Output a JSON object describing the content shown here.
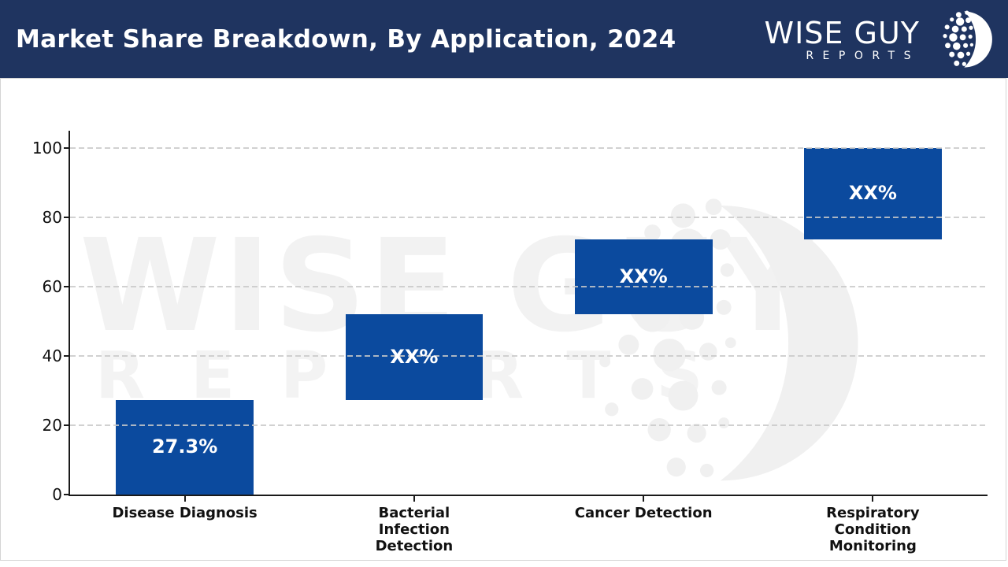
{
  "header": {
    "title": "Market Share Breakdown, By Application, 2024",
    "logo": {
      "line1": "WISE GUY",
      "line2": "REPORTS"
    }
  },
  "watermark": {
    "big_text": "WISE GUY",
    "sub_text": "REPORTS"
  },
  "colors": {
    "header_bg": "#1f3460",
    "bar": "#0b4a9e",
    "bar_label": "#ffffff",
    "grid": "#c9c9c9",
    "axis": "#1a1a1a",
    "watermark": "#f2f2f2"
  },
  "chart_data": {
    "type": "bar",
    "subtype": "waterfall",
    "title": "Market Share Breakdown, By Application, 2024",
    "xlabel": "",
    "ylabel": "",
    "ylim": [
      0,
      105
    ],
    "yticks": [
      0,
      20,
      40,
      60,
      80,
      100
    ],
    "grid": "dashed horizontal",
    "legend": "none",
    "categories": [
      "Disease Diagnosis",
      "Bacterial\nInfection\nDetection",
      "Cancer Detection",
      "Respiratory\nCondition\nMonitoring"
    ],
    "bars": [
      {
        "category": "Disease Diagnosis",
        "start": 0,
        "end": 27.3,
        "label": "27.3%"
      },
      {
        "category": "Bacterial\nInfection\nDetection",
        "start": 27.3,
        "end": 52,
        "label": "XX%"
      },
      {
        "category": "Cancer Detection",
        "start": 52,
        "end": 73.6,
        "label": "XX%"
      },
      {
        "category": "Respiratory\nCondition\nMonitoring",
        "start": 73.6,
        "end": 100,
        "label": "XX%"
      }
    ]
  }
}
